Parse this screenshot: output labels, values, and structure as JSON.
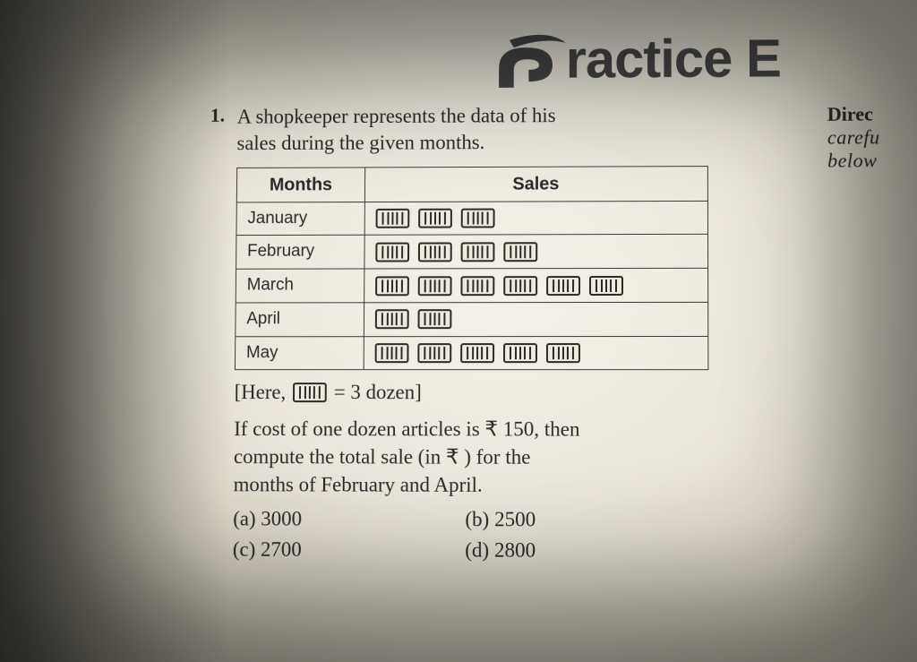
{
  "logo": {
    "text": "ractice E"
  },
  "question": {
    "number": "1.",
    "stem_line1": "A shopkeeper represents the data of his",
    "stem_line2": "sales during the given months."
  },
  "side": {
    "direc": "Direc",
    "carefu": "carefu",
    "below": "below"
  },
  "table": {
    "header_months": "Months",
    "header_sales": "Sales",
    "rows": [
      {
        "month": "January",
        "count": 3
      },
      {
        "month": "February",
        "count": 4
      },
      {
        "month": "March",
        "count": 6
      },
      {
        "month": "April",
        "count": 2
      },
      {
        "month": "May",
        "count": 5
      }
    ],
    "picto_stripes": 5,
    "picto_border_color": "#2a2a2a",
    "picto_fill_color": "#efeadb"
  },
  "legend": {
    "prefix": "[Here,",
    "suffix": "= 3 dozen]"
  },
  "prompt": {
    "l1": "If cost of one dozen articles is ₹ 150, then",
    "l2": "compute the total sale (in ₹ ) for the",
    "l3": "months of February and April."
  },
  "options": {
    "a": "(a) 3000",
    "b": "(b) 2500",
    "c": "(c) 2700",
    "d": "(d) 2800"
  },
  "colors": {
    "text": "#2a2a2a",
    "table_border": "#3a3a3a",
    "logo_fill": "#444444"
  }
}
